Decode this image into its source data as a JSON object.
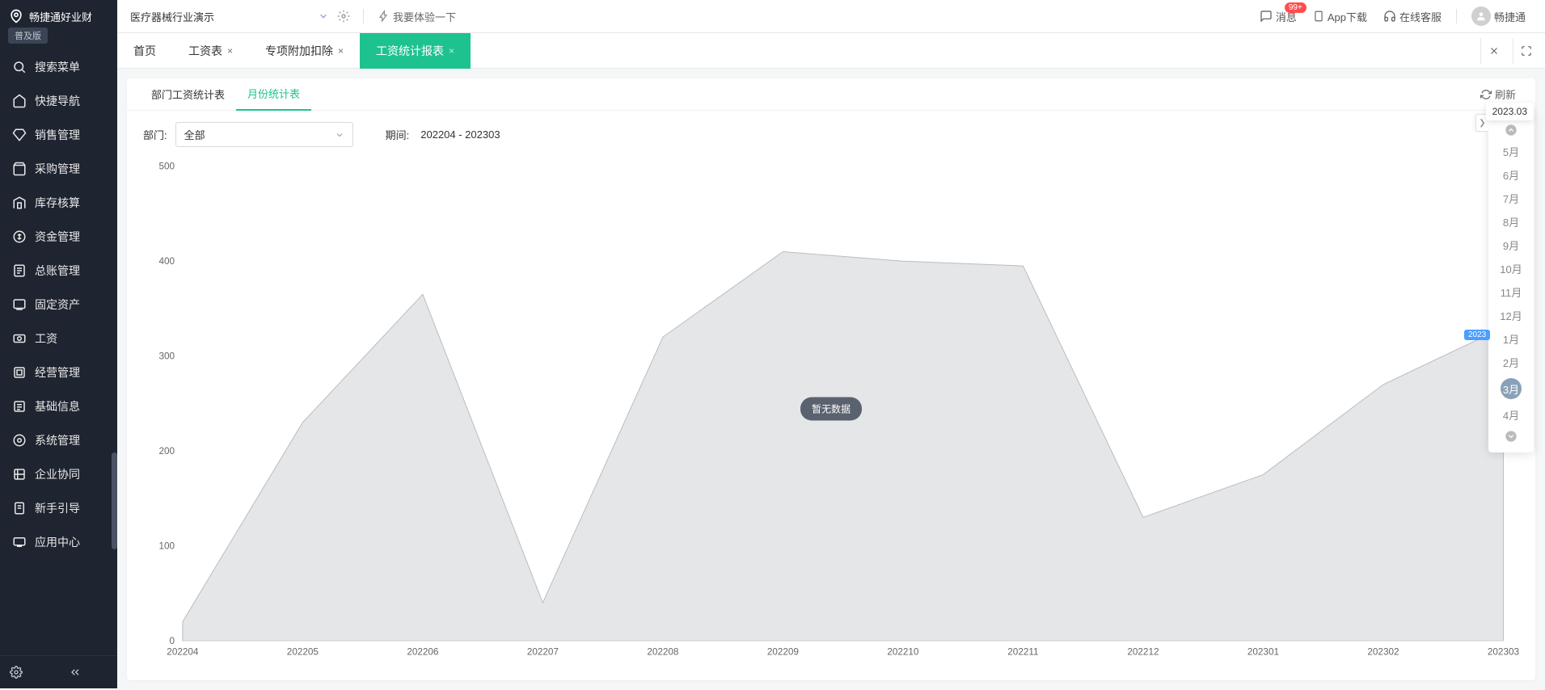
{
  "brand": {
    "name": "畅捷通好业财",
    "version": "普及版"
  },
  "sidebar": {
    "items": [
      {
        "label": "搜索菜单",
        "icon": "search"
      },
      {
        "label": "快捷导航",
        "icon": "home"
      },
      {
        "label": "销售管理",
        "icon": "diamond"
      },
      {
        "label": "采购管理",
        "icon": "bag"
      },
      {
        "label": "库存核算",
        "icon": "warehouse"
      },
      {
        "label": "资金管理",
        "icon": "coin"
      },
      {
        "label": "总账管理",
        "icon": "ledger"
      },
      {
        "label": "固定资产",
        "icon": "asset"
      },
      {
        "label": "工资",
        "icon": "salary"
      },
      {
        "label": "经营管理",
        "icon": "manage"
      },
      {
        "label": "基础信息",
        "icon": "info"
      },
      {
        "label": "系统管理",
        "icon": "system"
      },
      {
        "label": "企业协同",
        "icon": "collab"
      },
      {
        "label": "新手引导",
        "icon": "guide"
      },
      {
        "label": "应用中心",
        "icon": "apps"
      }
    ]
  },
  "topbar": {
    "tenant": "医疗器械行业演示",
    "try_label": "我要体验一下",
    "message_label": "消息",
    "message_badge": "99+",
    "app_label": "App下载",
    "service_label": "在线客服",
    "user_name": "畅捷通"
  },
  "tabs": [
    {
      "label": "首页",
      "closable": false,
      "active": false
    },
    {
      "label": "工资表",
      "closable": true,
      "active": false
    },
    {
      "label": "专项附加扣除",
      "closable": true,
      "active": false
    },
    {
      "label": "工资统计报表",
      "closable": true,
      "active": true
    }
  ],
  "subtabs": [
    {
      "label": "部门工资统计表",
      "active": false
    },
    {
      "label": "月份统计表",
      "active": true
    }
  ],
  "refresh_label": "刷新",
  "filters": {
    "dept_label": "部门:",
    "dept_value": "全部",
    "period_label": "期间:",
    "period_value": "202204 - 202303"
  },
  "chart": {
    "type": "area",
    "no_data_label": "暂无数据",
    "x_categories": [
      "202204",
      "202205",
      "202206",
      "202207",
      "202208",
      "202209",
      "202210",
      "202211",
      "202212",
      "202301",
      "202302",
      "202303"
    ],
    "y_ticks": [
      0,
      100,
      200,
      300,
      400,
      500
    ],
    "ylim": [
      0,
      500
    ],
    "values": [
      20,
      230,
      365,
      40,
      320,
      410,
      400,
      395,
      130,
      175,
      270,
      330
    ],
    "area_fill": "#e4e6e8",
    "area_stroke": "#b8bcc2",
    "axis_color": "#cccccc",
    "tick_label_color": "#666666",
    "tick_fontsize": 12,
    "background": "#ffffff"
  },
  "month_picker": {
    "header": "2023.03",
    "year_tag": "2023",
    "items": [
      {
        "label": "5月"
      },
      {
        "label": "6月"
      },
      {
        "label": "7月"
      },
      {
        "label": "8月"
      },
      {
        "label": "9月"
      },
      {
        "label": "10月"
      },
      {
        "label": "11月"
      },
      {
        "label": "12月"
      },
      {
        "label": "1月",
        "year_start": true
      },
      {
        "label": "2月"
      },
      {
        "label": "3月",
        "active": true
      },
      {
        "label": "4月"
      }
    ]
  }
}
